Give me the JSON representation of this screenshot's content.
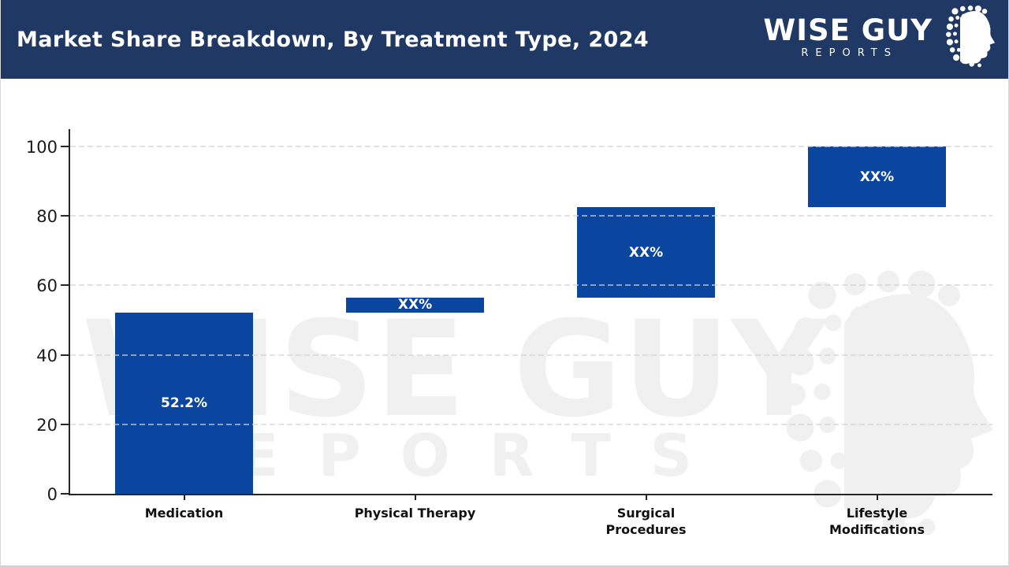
{
  "header": {
    "title": "Market Share Breakdown, By Treatment Type, 2024",
    "bg_color": "#1F3864",
    "logo": {
      "wordmark": "WISE GUY",
      "sub": "REPORTS"
    }
  },
  "watermark": {
    "wordmark": "WISE GUY",
    "sub": "REPORTS"
  },
  "chart_data": {
    "type": "bar",
    "subtype": "waterfall",
    "title": "Market Share Breakdown, By Treatment Type, 2024",
    "categories": [
      "Medication",
      "Physical Therapy",
      "Surgical\nProcedures",
      "Lifestyle\nModifications"
    ],
    "segments": [
      {
        "category": "Medication",
        "start": 0,
        "end": 52.2,
        "label": "52.2%"
      },
      {
        "category": "Physical Therapy",
        "start": 52.2,
        "end": 56.5,
        "label": "XX%"
      },
      {
        "category": "Surgical Procedures",
        "start": 56.5,
        "end": 82.5,
        "label": "XX%"
      },
      {
        "category": "Lifestyle Modifications",
        "start": 82.5,
        "end": 100,
        "label": "XX%"
      }
    ],
    "ylim": [
      0,
      100
    ],
    "yticks": [
      0,
      20,
      40,
      60,
      80,
      100
    ],
    "grid": "horizontal-dashed",
    "legend": "none",
    "bar_color": "#0A46A0",
    "bar_label_color": "#ffffff",
    "axis_color": "#262626",
    "grid_color": "#d3d3d3"
  }
}
